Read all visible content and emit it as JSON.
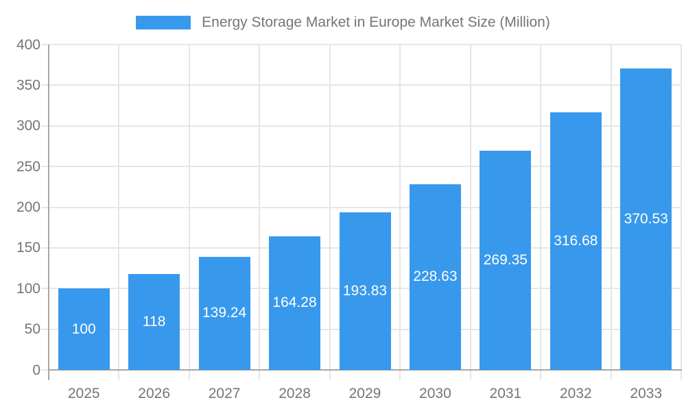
{
  "legend": {
    "label": "Energy Storage Market in Europe Market Size (Million)"
  },
  "chart_data": {
    "type": "bar",
    "title": "Energy Storage Market in Europe Market Size (Million)",
    "categories": [
      "2025",
      "2026",
      "2027",
      "2028",
      "2029",
      "2030",
      "2031",
      "2032",
      "2033"
    ],
    "values": [
      100,
      118,
      139.24,
      164.28,
      193.83,
      228.63,
      269.35,
      316.68,
      370.53
    ],
    "bar_labels": [
      "100",
      "118",
      "139.24",
      "164.28",
      "193.83",
      "228.63",
      "269.35",
      "316.68",
      "370.53"
    ],
    "xlabel": "",
    "ylabel": "",
    "ylim": [
      0,
      400
    ],
    "yticks": [
      0,
      50,
      100,
      150,
      200,
      250,
      300,
      350,
      400
    ],
    "grid": true,
    "legend_position": "top-center",
    "colors": {
      "bar": "#3899ec",
      "value_label": "#ffffff",
      "axis_label": "#757575",
      "axis_line": "#a6a6a6",
      "gridline": "#e6e6e6"
    }
  }
}
